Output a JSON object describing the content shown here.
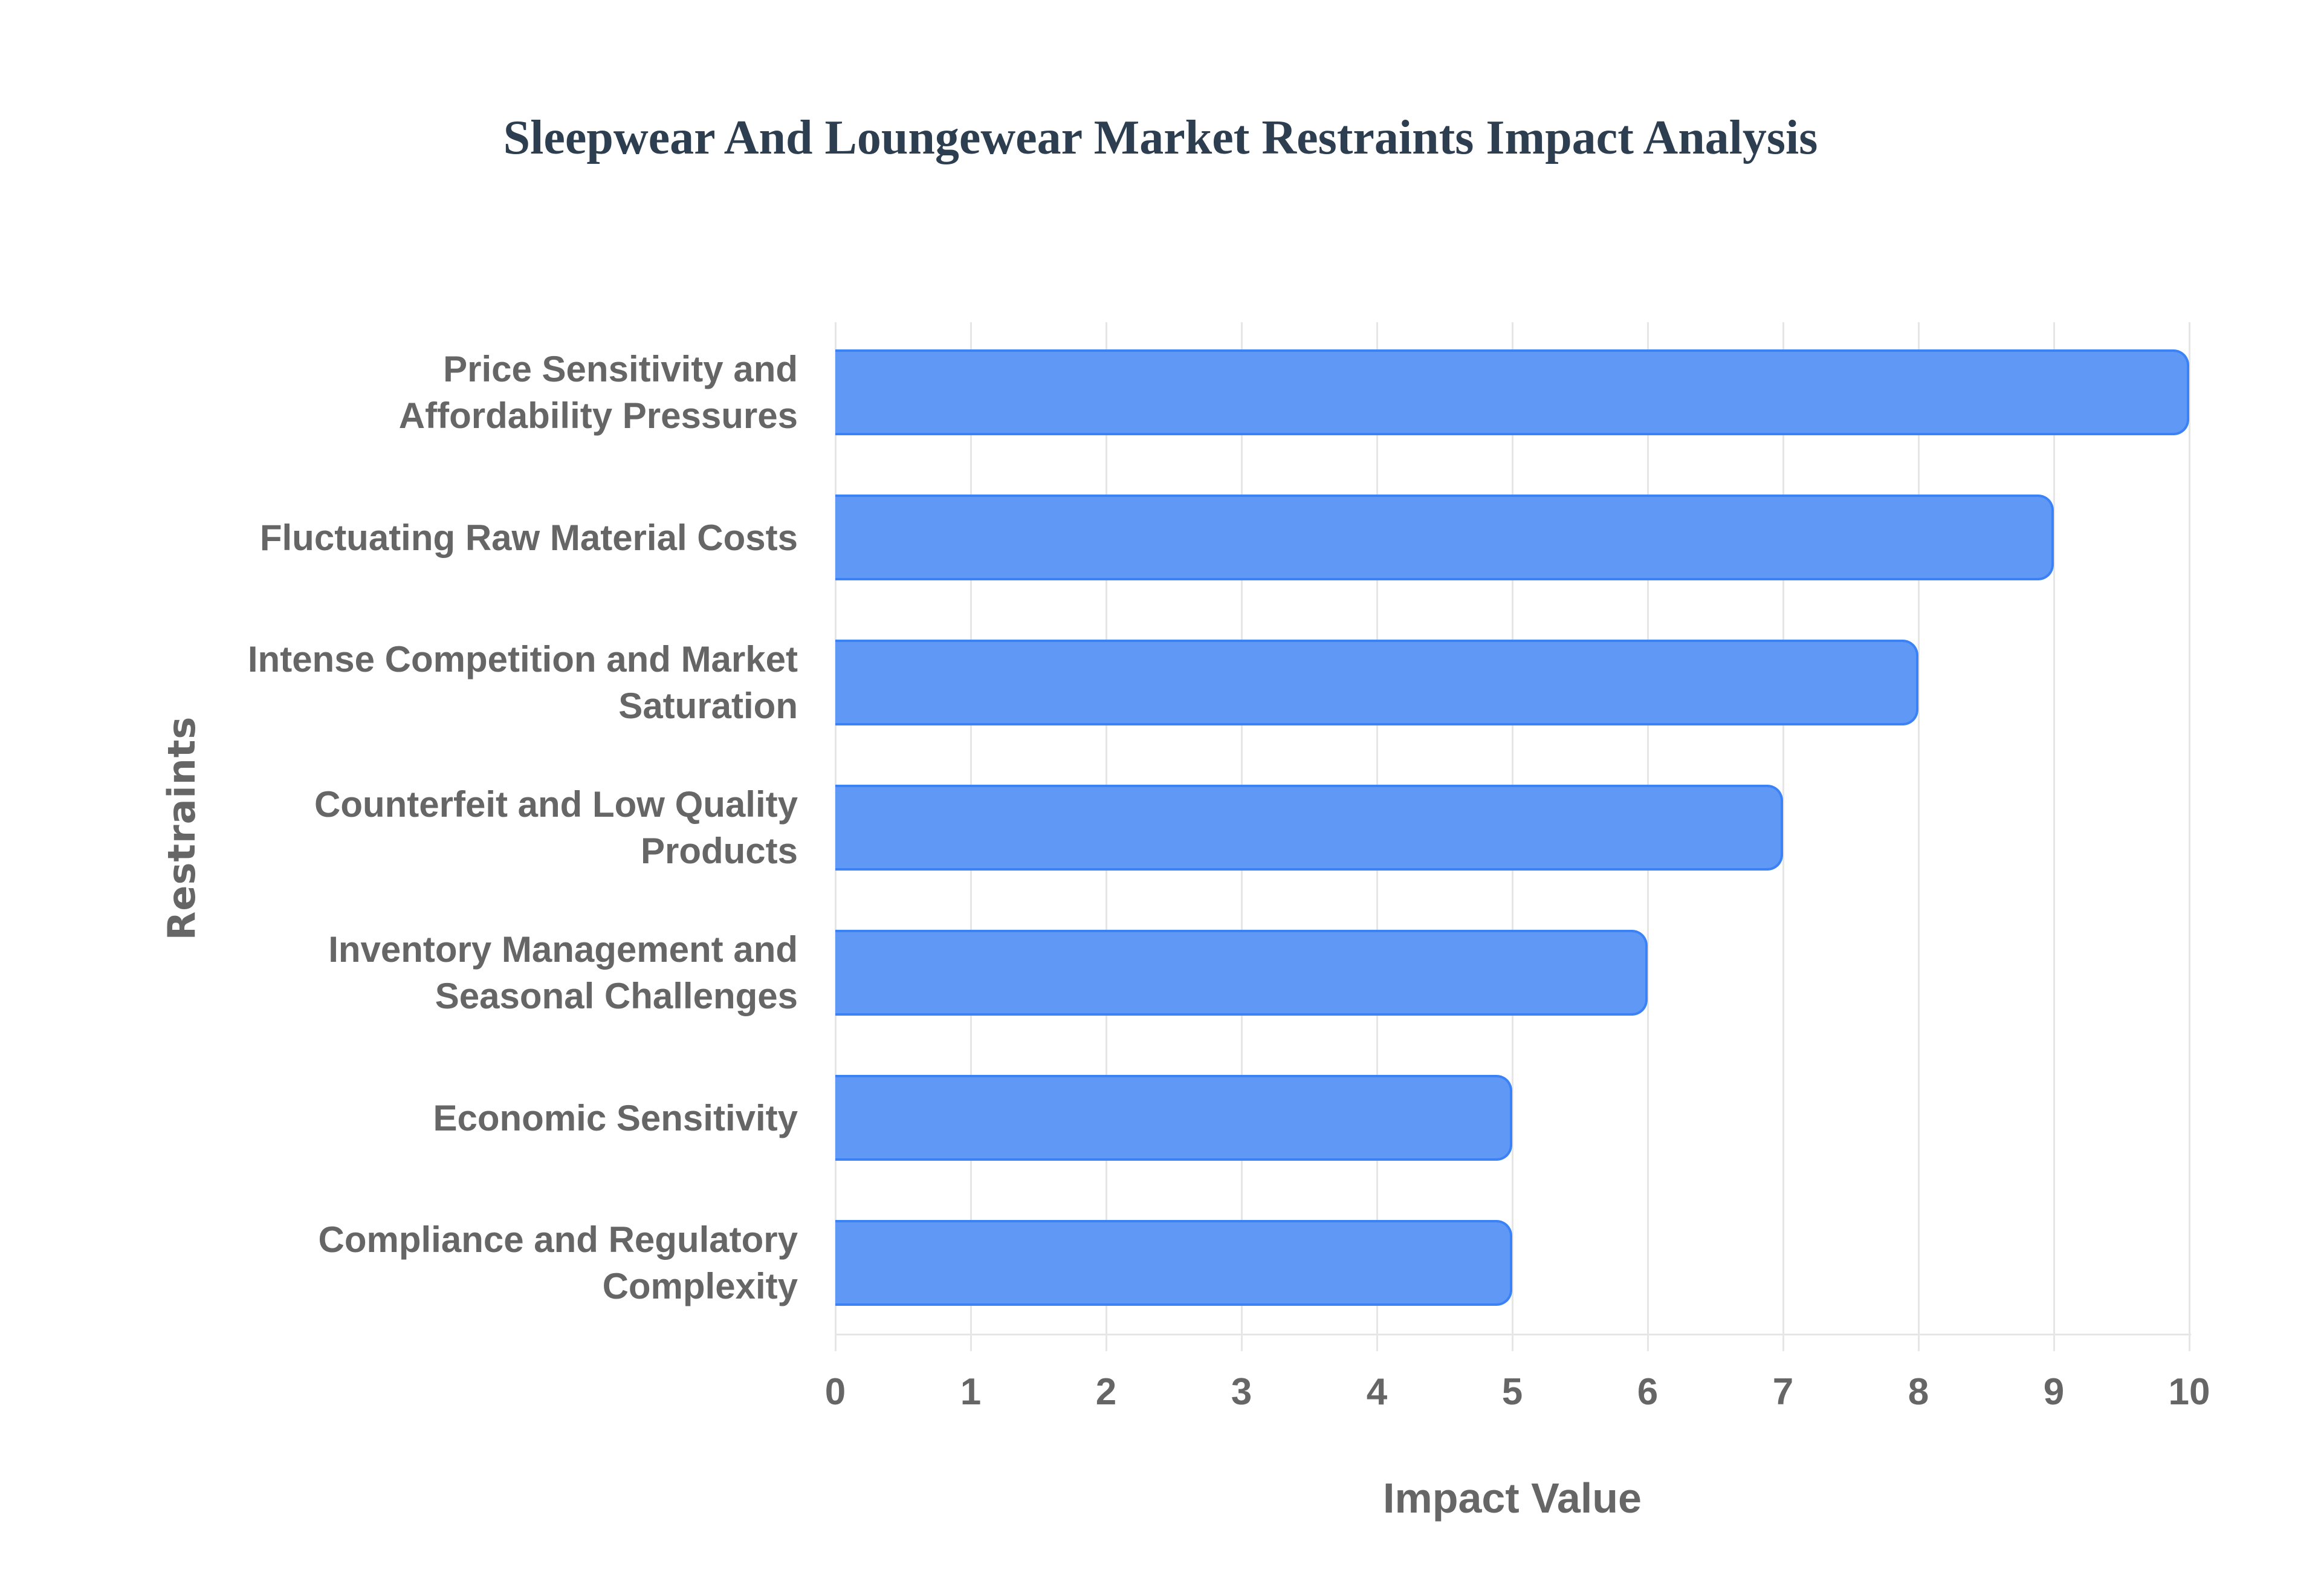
{
  "title": "Sleepwear And Loungewear Market Restraints Impact Analysis",
  "colors": {
    "bar_fill": "#5f98f5",
    "bar_border": "#3b82f6",
    "title": "#2c3e50",
    "axis_text": "#666666",
    "grid": "#e6e6e6"
  },
  "chart_data": {
    "type": "bar",
    "orientation": "horizontal",
    "title": "Sleepwear And Loungewear Market Restraints Impact Analysis",
    "xlabel": "Impact Value",
    "ylabel": "Restraints",
    "xlim": [
      0,
      10
    ],
    "x_ticks": [
      "0",
      "1",
      "2",
      "3",
      "4",
      "5",
      "6",
      "7",
      "8",
      "9",
      "10"
    ],
    "grid": true,
    "legend": null,
    "categories": [
      "Price Sensitivity and Affordability Pressures",
      "Fluctuating Raw Material Costs",
      "Intense Competition and Market Saturation",
      "Counterfeit and Low Quality Products",
      "Inventory Management and Seasonal Challenges",
      "Economic Sensitivity",
      "Compliance and Regulatory Complexity"
    ],
    "values": [
      10,
      9,
      8,
      7,
      6,
      5,
      5
    ]
  },
  "labels": [
    {
      "line1": "Price Sensitivity and",
      "line2": "Affordability Pressures"
    },
    {
      "line1": "Fluctuating Raw Material Costs",
      "line2": ""
    },
    {
      "line1": "Intense Competition and Market",
      "line2": "Saturation"
    },
    {
      "line1": "Counterfeit and Low Quality",
      "line2": "Products"
    },
    {
      "line1": "Inventory Management and",
      "line2": "Seasonal Challenges"
    },
    {
      "line1": "Economic Sensitivity",
      "line2": ""
    },
    {
      "line1": "Compliance and Regulatory",
      "line2": "Complexity"
    }
  ]
}
